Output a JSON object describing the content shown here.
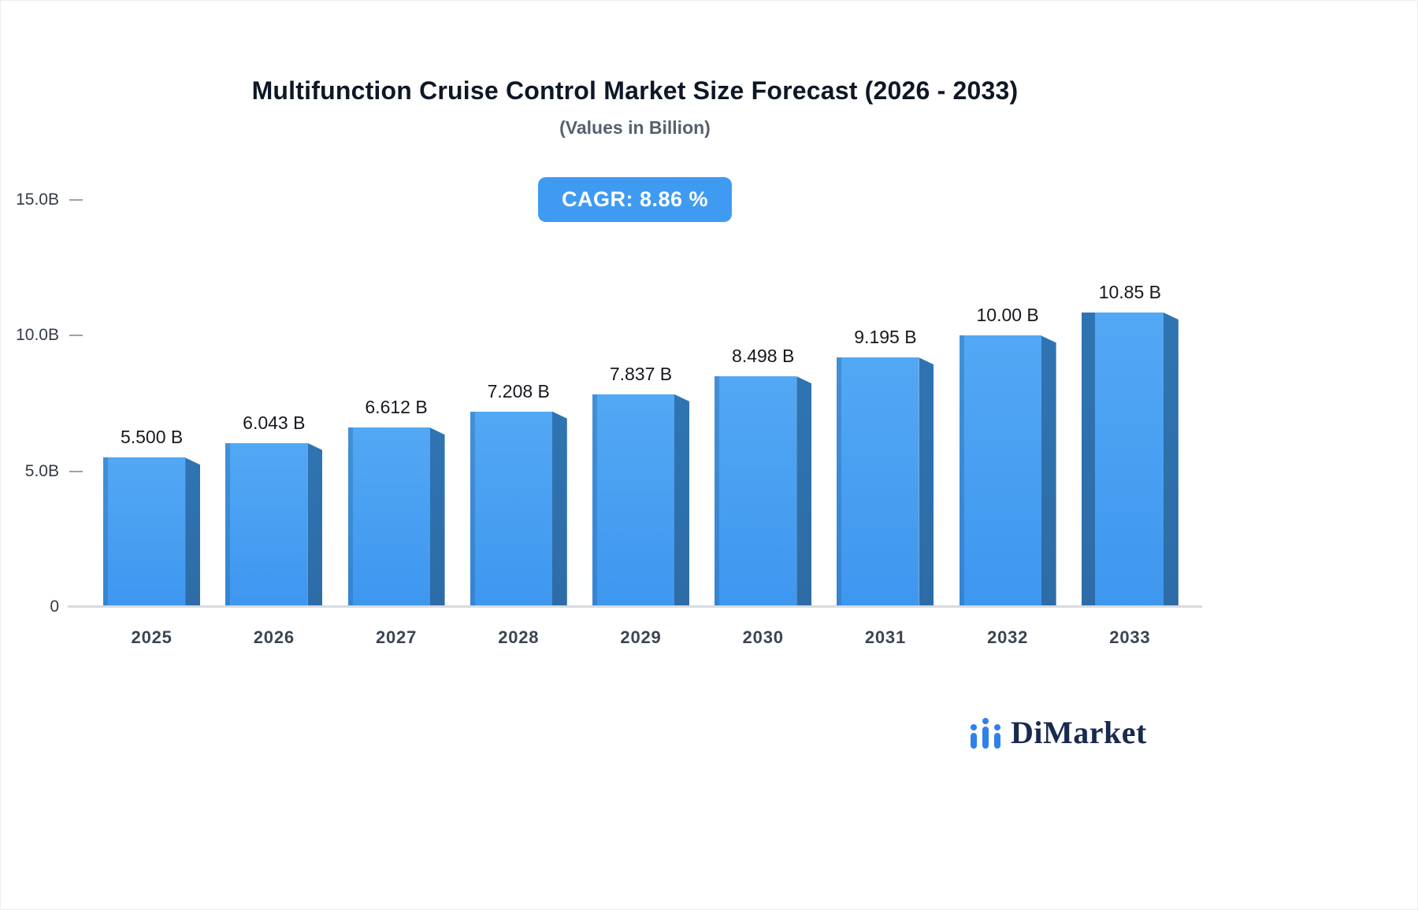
{
  "header": {
    "title": "Multifunction Cruise Control Market Size Forecast (2026 - 2033)",
    "subtitle": "(Values in Billion)",
    "cagr_label": "CAGR: 8.86 %"
  },
  "chart_data": {
    "type": "bar",
    "title": "Multifunction Cruise Control Market Size Forecast (2026 - 2033)",
    "subtitle": "(Values in Billion)",
    "categories": [
      "2025",
      "2026",
      "2027",
      "2028",
      "2029",
      "2030",
      "2031",
      "2032",
      "2033"
    ],
    "values": [
      5.5,
      6.043,
      6.612,
      7.208,
      7.837,
      8.498,
      9.195,
      10.0,
      10.85
    ],
    "value_labels": [
      "5.500 B",
      "6.043 B",
      "6.612 B",
      "7.208 B",
      "7.837 B",
      "8.498 B",
      "9.195 B",
      "10.00 B",
      "10.85 B"
    ],
    "unit": "Billion",
    "cagr": "8.86 %",
    "ylim": [
      0,
      15
    ],
    "y_ticks": [
      {
        "value": 15,
        "label": "15.0B"
      },
      {
        "value": 10,
        "label": "10.0B"
      },
      {
        "value": 5,
        "label": "5.0B"
      },
      {
        "value": 0,
        "label": "0"
      }
    ],
    "grid": false,
    "legend": false,
    "bar_color": "#42A0F0",
    "bar_side_color": "#2E73AD"
  },
  "branding": {
    "logo_text": "DiMarket",
    "logo_icon": "bar-chart-icon",
    "logo_icon_color": "#2F80ED",
    "logo_text_color": "#182A4D"
  }
}
